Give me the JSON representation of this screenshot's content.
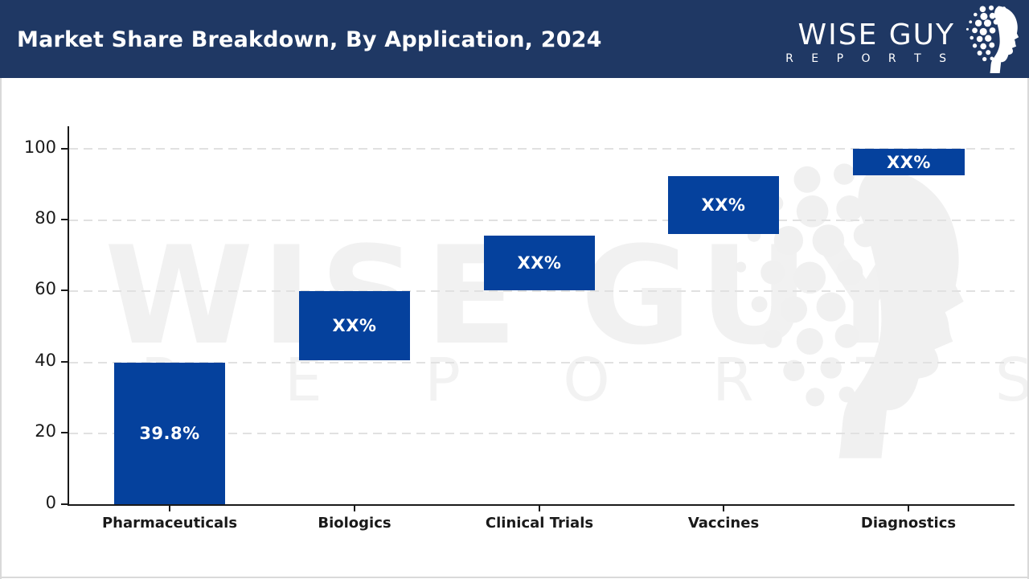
{
  "header": {
    "title": "Market Share Breakdown, By Application, 2024",
    "logo": {
      "line1": "WISE GUY",
      "line2": "R E P O R T S"
    },
    "bg_color": "#1f3864"
  },
  "watermark": {
    "line1": "WISE GUY",
    "line2": "R E P O R T S"
  },
  "chart_data": {
    "type": "bar",
    "subtype": "waterfall-floating-segments",
    "title": "Market Share Breakdown, By Application, 2024",
    "categories": [
      "Pharmaceuticals",
      "Biologics",
      "Clinical Trials",
      "Vaccines",
      "Diagnostics"
    ],
    "bars": [
      {
        "category": "Pharmaceuticals",
        "start": 0,
        "end": 39.8,
        "label": "39.8%"
      },
      {
        "category": "Biologics",
        "start": 40.5,
        "end": 60,
        "label": "XX%"
      },
      {
        "category": "Clinical Trials",
        "start": 60.2,
        "end": 75.6,
        "label": "XX%"
      },
      {
        "category": "Vaccines",
        "start": 76.1,
        "end": 92.4,
        "label": "XX%"
      },
      {
        "category": "Diagnostics",
        "start": 92.6,
        "end": 100,
        "label": "XX%"
      }
    ],
    "xlabel": "",
    "ylabel": "",
    "ylim": [
      0,
      100
    ],
    "yticks": [
      0,
      20,
      40,
      60,
      80,
      100
    ],
    "grid": "horizontal-dashed",
    "legend": "none",
    "bar_color": "#05419d",
    "bar_label_color": "#ffffff"
  }
}
